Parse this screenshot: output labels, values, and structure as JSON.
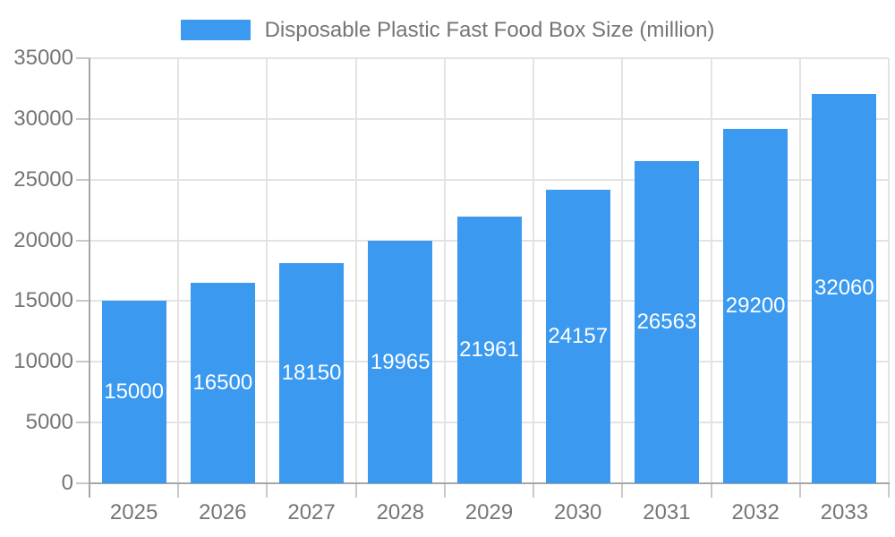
{
  "chart_data": {
    "type": "bar",
    "title": "Disposable Plastic Fast Food Box Size (million)",
    "legend_entries": [
      "Disposable Plastic Fast Food Box Size (million)"
    ],
    "legend_position": "top-center",
    "categories": [
      "2025",
      "2026",
      "2027",
      "2028",
      "2029",
      "2030",
      "2031",
      "2032",
      "2033"
    ],
    "values": [
      15000,
      16500,
      18150,
      19965,
      21961,
      24157,
      26563,
      29200,
      32060
    ],
    "xlabel": "",
    "ylabel": "",
    "ylim": [
      0,
      35000
    ],
    "yticks": [
      0,
      5000,
      10000,
      15000,
      20000,
      25000,
      30000,
      35000
    ],
    "grid": "horizontal and vertical gridlines",
    "value_labels": "white, centered inside bars",
    "colors": {
      "bar": "#3b99f0",
      "bar_label": "#ffffff",
      "grid": "#e3e3e3",
      "axis": "#a6a6a6",
      "tick": "#c9c9c9",
      "text": "#757575",
      "background": "#ffffff"
    }
  }
}
